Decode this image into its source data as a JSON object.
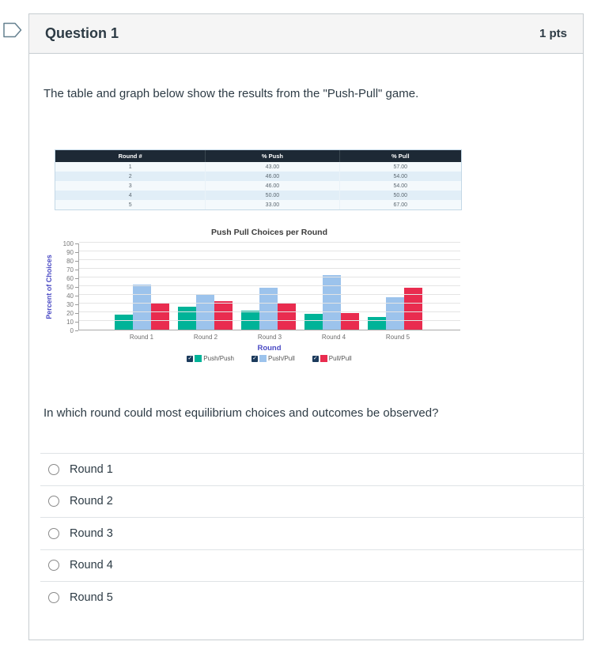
{
  "icons": {
    "marker": "flag-pentagon-icon",
    "legend_checkbox_glyph": "✓"
  },
  "header": {
    "title": "Question 1",
    "points": "1 pts"
  },
  "prompt": "The table and graph below show the results from the \"Push-Pull\" game.",
  "table": {
    "columns": [
      "Round #",
      "% Push",
      "% Pull"
    ],
    "rows": [
      [
        "1",
        "43.00",
        "57.00"
      ],
      [
        "2",
        "46.00",
        "54.00"
      ],
      [
        "3",
        "46.00",
        "54.00"
      ],
      [
        "4",
        "50.00",
        "50.00"
      ],
      [
        "5",
        "33.00",
        "67.00"
      ]
    ]
  },
  "chart_data": {
    "type": "bar",
    "title": "Push Pull Choices per Round",
    "xlabel": "Round",
    "ylabel": "Percent of Choices",
    "ylim": [
      0,
      100
    ],
    "ytick_step": 10,
    "grid": true,
    "legend_position": "bottom",
    "categories": [
      "Round 1",
      "Round 2",
      "Round 3",
      "Round 4",
      "Round 5"
    ],
    "series": [
      {
        "name": "Push/Push",
        "color": "#00b398",
        "checked": true,
        "values": [
          17,
          26,
          22,
          18,
          15
        ]
      },
      {
        "name": "Push/Pull",
        "color": "#9cc3ec",
        "checked": true,
        "values": [
          52,
          41,
          48,
          63,
          37
        ]
      },
      {
        "name": "Pull/Pull",
        "color": "#e92c4f",
        "checked": true,
        "values": [
          31,
          33,
          30,
          19,
          48
        ]
      }
    ]
  },
  "question": "In which round could most equilibrium choices and outcomes be observed?",
  "options": [
    {
      "label": "Round 1",
      "selected": false
    },
    {
      "label": "Round 2",
      "selected": false
    },
    {
      "label": "Round 3",
      "selected": false
    },
    {
      "label": "Round 4",
      "selected": false
    },
    {
      "label": "Round 5",
      "selected": false
    }
  ],
  "colors": {
    "box_border": "#c7cdd1",
    "header_bg": "#f5f5f5",
    "table_header_bg": "#1d2935",
    "row_alt": "#e1eef7",
    "axis_label": "#4a4ac4"
  }
}
